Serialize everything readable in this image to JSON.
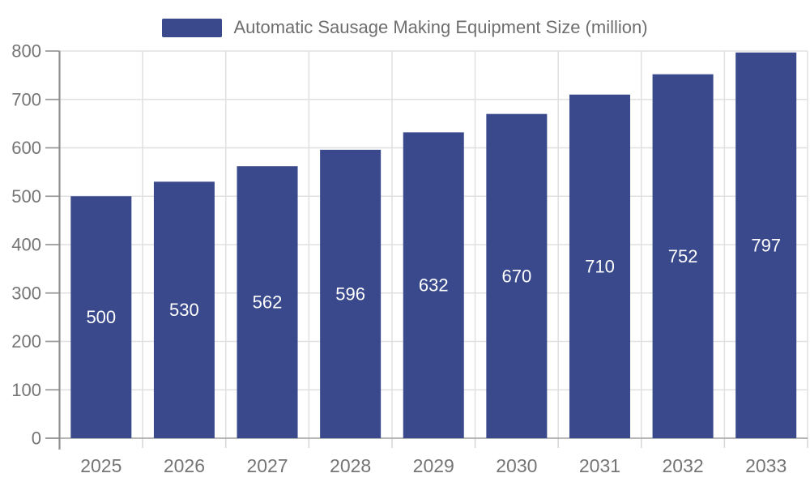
{
  "legend": {
    "label": "Automatic Sausage Making Equipment Size (million)"
  },
  "chart_data": {
    "type": "bar",
    "title": "Automatic Sausage Making Equipment Size (million)",
    "categories": [
      "2025",
      "2026",
      "2027",
      "2028",
      "2029",
      "2030",
      "2031",
      "2032",
      "2033"
    ],
    "values": [
      500,
      530,
      562,
      596,
      632,
      670,
      710,
      752,
      797
    ],
    "xlabel": "",
    "ylabel": "",
    "ylim": [
      0,
      800
    ],
    "ytick_step": 100,
    "grid": true,
    "legend_position": "top-center",
    "value_labels": "inside-center",
    "colors": {
      "bar": "#39498B",
      "value_label": "#ffffff",
      "axis_text": "#757575",
      "legend_text": "#6e6e6e",
      "gridline": "#e0e0e0",
      "x_axis_line": "#ababab",
      "y_axis_line": "#8f8f8f",
      "tick": "#d6d6d6",
      "y_tick": "#9a9a9a"
    }
  }
}
